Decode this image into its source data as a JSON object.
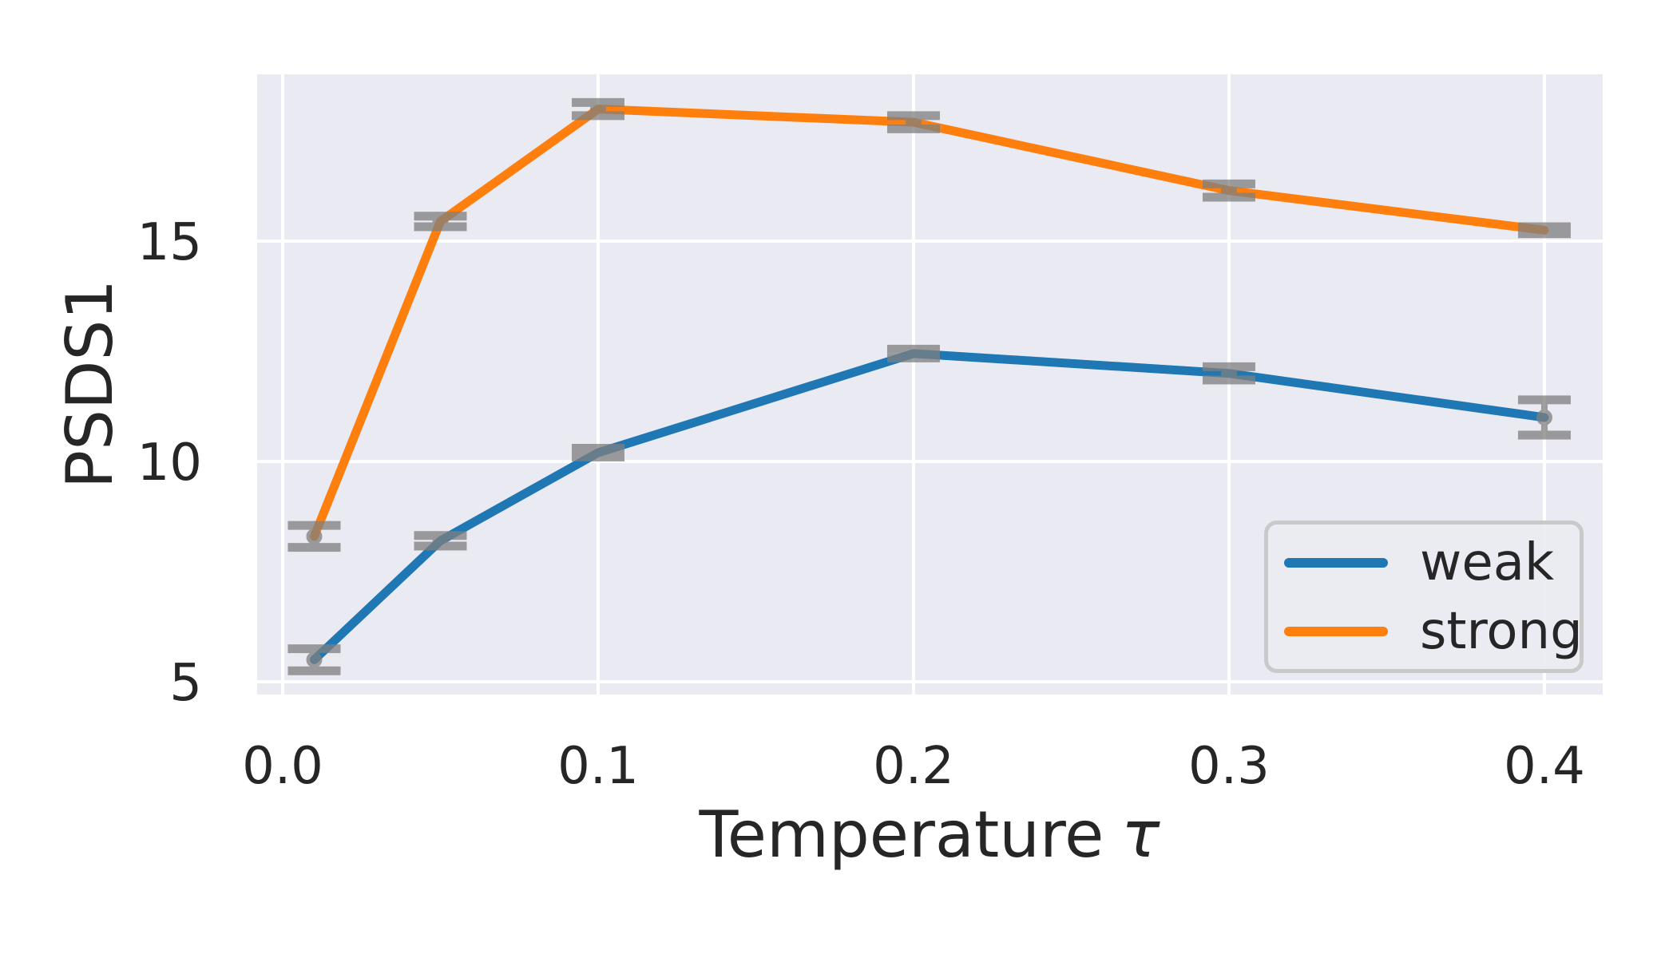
{
  "chart_data": {
    "type": "line",
    "title": "",
    "xlabel": "Temperature τ",
    "xlabel_text": "Temperature",
    "xlabel_symbol": "τ",
    "ylabel": "PSDS1",
    "x": [
      0.01,
      0.05,
      0.1,
      0.2,
      0.3,
      0.4
    ],
    "xticks": [
      0.0,
      0.1,
      0.2,
      0.3,
      0.4
    ],
    "xtick_labels": [
      "0.0",
      "0.1",
      "0.2",
      "0.3",
      "0.4"
    ],
    "yticks": [
      5,
      10,
      15
    ],
    "ytick_labels": [
      "5",
      "10",
      "15"
    ],
    "xlim": [
      -0.0081,
      0.4185
    ],
    "ylim": [
      4.71,
      18.79
    ],
    "grid": true,
    "legend_position": "lower right",
    "series": [
      {
        "name": "weak",
        "color": "#1f77b4",
        "values": [
          5.5,
          8.2,
          10.2,
          12.45,
          12.0,
          11.0
        ],
        "errors": [
          0.25,
          0.12,
          0.1,
          0.1,
          0.15,
          0.4
        ]
      },
      {
        "name": "strong",
        "color": "#ff7f0e",
        "values": [
          8.3,
          15.45,
          18.0,
          17.7,
          16.15,
          15.25
        ],
        "errors": [
          0.25,
          0.12,
          0.15,
          0.15,
          0.15,
          0.08
        ]
      }
    ],
    "style": {
      "background": "#eaeaf2",
      "grid": "#ffffff",
      "error_bar": "#7f7f7f",
      "text": "#262626"
    }
  }
}
